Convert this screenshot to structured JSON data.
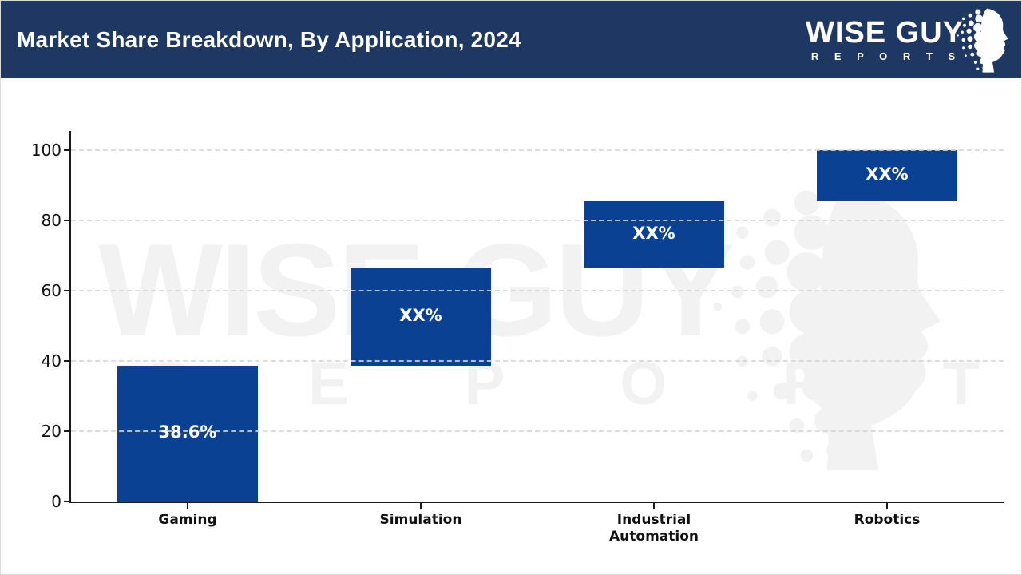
{
  "header": {
    "title": "Market Share Breakdown, By Application, 2024",
    "brand": {
      "name": "WISE GUY",
      "sub": "R E P O R T S"
    }
  },
  "watermark": {
    "name": "WISE GUY",
    "sub": "R E P O R T S"
  },
  "colors": {
    "header_bg": "#1f3763",
    "bar": "#0a4192",
    "axis": "#1a1a1a",
    "grid": "#d9d9d9",
    "watermark": "#f2f2f2",
    "bar_label": "#ffffff"
  },
  "chart_data": {
    "type": "bar",
    "subtype": "floating-segment-waterfall",
    "title": "Market Share Breakdown, By Application, 2024",
    "categories": [
      "Gaming",
      "Simulation",
      "Industrial Automation",
      "Robotics"
    ],
    "series": [
      {
        "name": "Market share (%)",
        "ranges": [
          [
            0,
            38.6
          ],
          [
            38.6,
            66.5
          ],
          [
            66.5,
            85.5
          ],
          [
            85.5,
            100
          ]
        ]
      }
    ],
    "bar_labels": [
      "38.6%",
      "XX%",
      "XX%",
      "XX%"
    ],
    "ylim": [
      0,
      100
    ],
    "yticks": [
      0,
      20,
      40,
      60,
      80,
      100
    ],
    "grid": "horizontal dashed",
    "legend": "none"
  }
}
